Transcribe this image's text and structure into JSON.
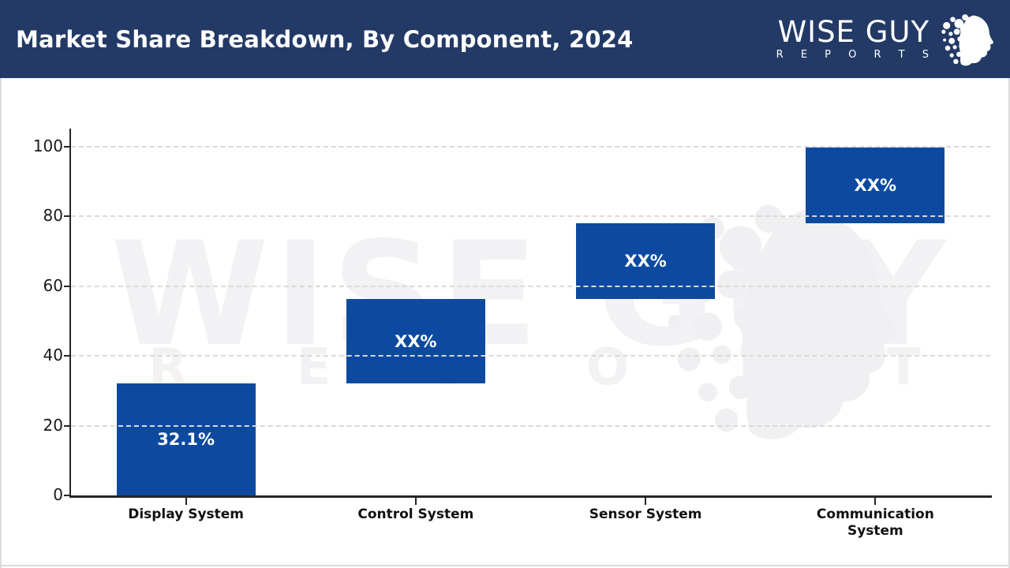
{
  "header": {
    "title": "Market Share Breakdown, By Component, 2024",
    "bg_color": "#233a66",
    "logo": {
      "line1": "WISE GUY",
      "line2": "R E P O R T S"
    }
  },
  "watermark": {
    "line1": "WISE GUY",
    "line2": "R E P O R T S"
  },
  "chart_data": {
    "type": "bar",
    "subtype": "waterfall",
    "title": "Market Share Breakdown, By Component, 2024",
    "categories": [
      "Display System",
      "Control System",
      "Sensor System",
      "Communication System"
    ],
    "segments": [
      {
        "category": "Display System",
        "start": 0,
        "end": 32.1,
        "label": "32.1%"
      },
      {
        "category": "Control System",
        "start": 32.1,
        "end": 56.2,
        "label": "XX%"
      },
      {
        "category": "Sensor System",
        "start": 56.2,
        "end": 77.9,
        "label": "XX%"
      },
      {
        "category": "Communication System",
        "start": 77.9,
        "end": 99.6,
        "label": "XX%"
      }
    ],
    "y_ticks": [
      0,
      20,
      40,
      60,
      80,
      100
    ],
    "ylim": [
      0,
      105
    ],
    "xlabel": "",
    "ylabel": "",
    "bar_color": "#0d4a9f",
    "value_label_color": "#ffffff",
    "grid": "horizontal-dashed",
    "gridline_color": "#d9d9d9",
    "legend": "none"
  }
}
